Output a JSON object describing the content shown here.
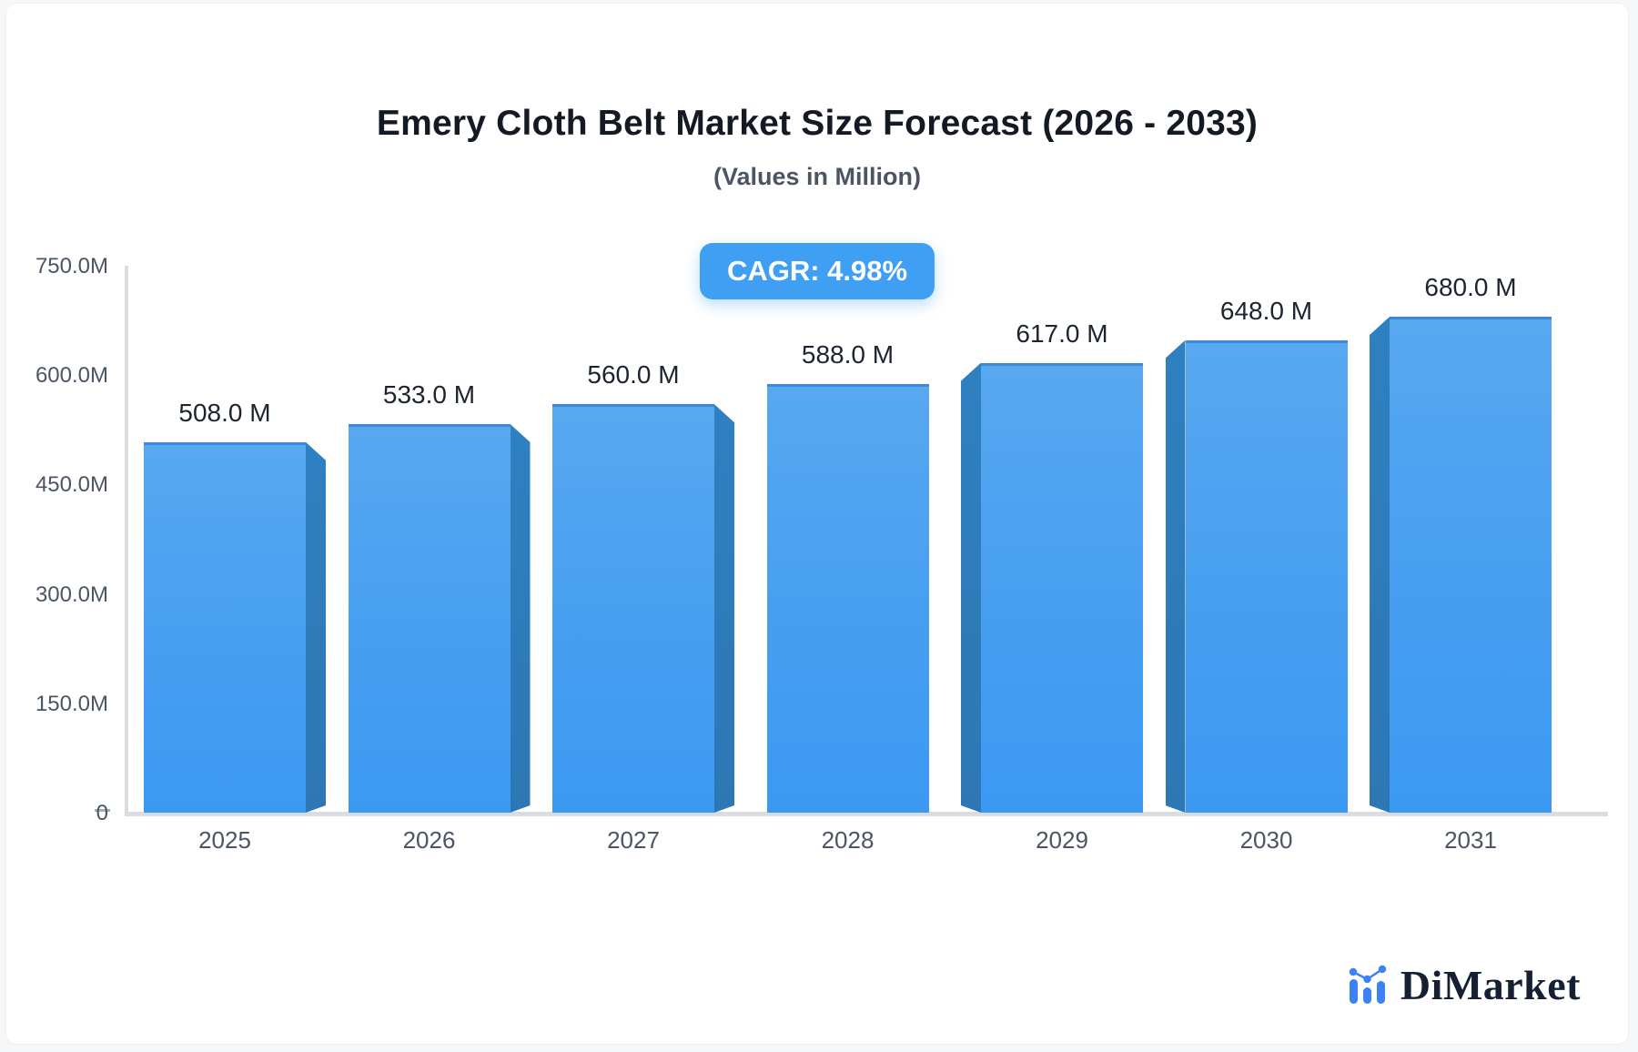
{
  "header": {
    "title": "Emery Cloth Belt Market Size Forecast (2026 - 2033)",
    "subtitle": "(Values in Million)",
    "cagr_label": "CAGR: 4.98%"
  },
  "chart_data": {
    "type": "bar",
    "title": "Emery Cloth Belt Market Size Forecast (2026 - 2033)",
    "subtitle": "(Values in Million)",
    "unit": "Million",
    "cagr_percent": 4.98,
    "categories": [
      "2025",
      "2026",
      "2027",
      "2028",
      "2029",
      "2030",
      "2031"
    ],
    "values": [
      508,
      533,
      560,
      588,
      617,
      648,
      680
    ],
    "value_labels": [
      "508.0 M",
      "533.0 M",
      "560.0 M",
      "588.0 M",
      "617.0 M",
      "648.0 M",
      "680.0 M"
    ],
    "ylim": [
      0,
      750
    ],
    "y_ticks": [
      {
        "label": "750.0M",
        "value": 750
      },
      {
        "label": "600.0M",
        "value": 600
      },
      {
        "label": "450.0M",
        "value": 450
      },
      {
        "label": "300.0M",
        "value": 300
      },
      {
        "label": "150.0M",
        "value": 150
      },
      {
        "label": "0",
        "value": 0
      }
    ],
    "xlabel": "",
    "ylabel": "",
    "grid": false,
    "legend": false,
    "bar_style": "3d",
    "colors": {
      "bar_top": "#58a8f0",
      "bar_bottom": "#3b99f2",
      "bar_side": "#2d77b4",
      "axis_line": "#d9dce1",
      "tick_text": "#4a5565",
      "value_text": "#1c2431",
      "badge_background": "#3e9ff3",
      "badge_text": "#ffffff"
    }
  },
  "branding": {
    "logo_text": "DiMarket",
    "logo_icon": "bar-line-chart-icon",
    "icon_color": "#3b82f6",
    "text_color": "#152033"
  }
}
